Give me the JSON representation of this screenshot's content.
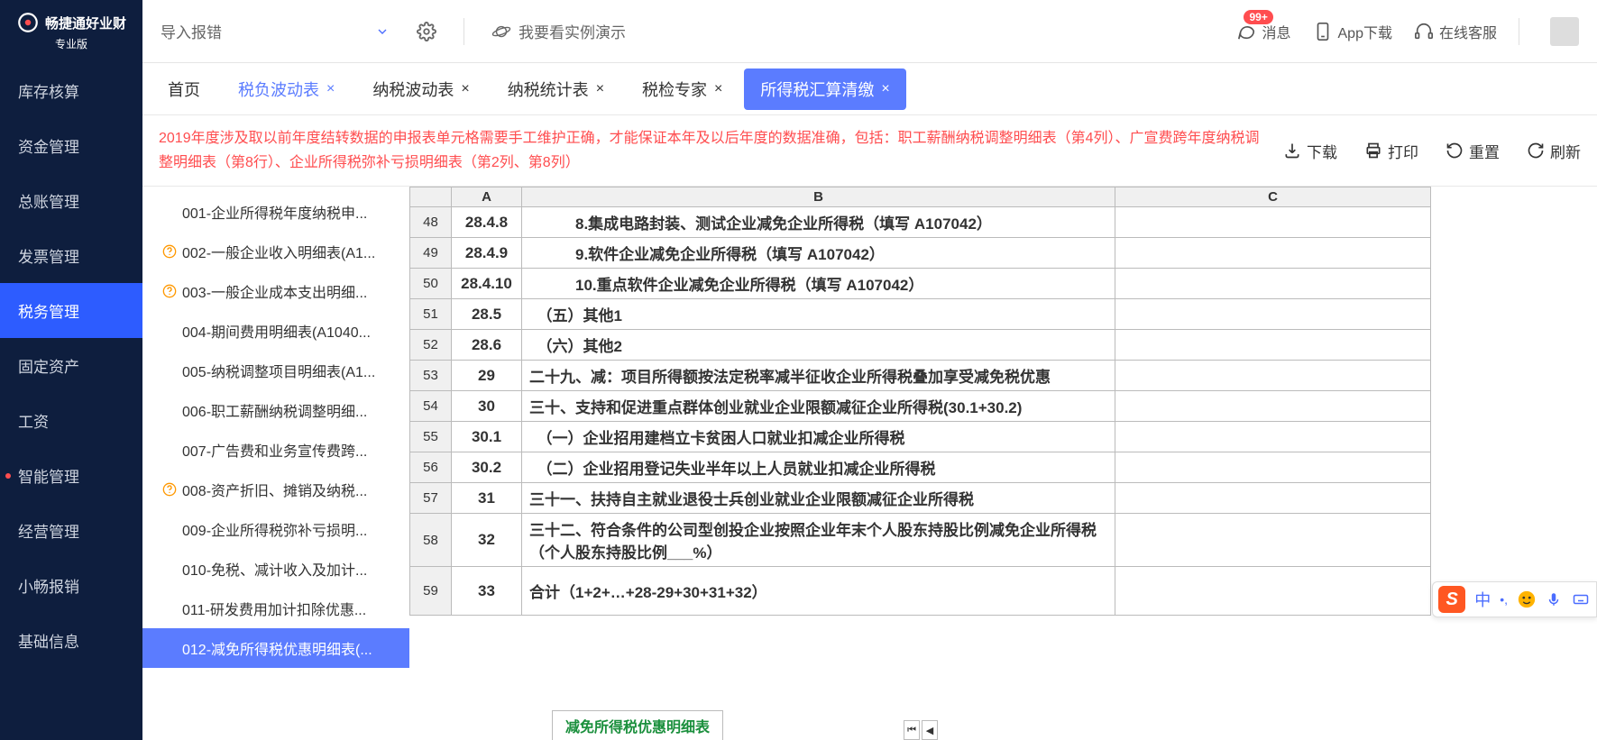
{
  "logo": {
    "text": "畅捷通好业财",
    "sub": "专业版"
  },
  "header": {
    "import_error": "导入报错",
    "demo": "我要看实例演示",
    "actions": {
      "msg": "消息",
      "badge": "99+",
      "app": "App下载",
      "cs": "在线客服"
    }
  },
  "sidebar": {
    "items": [
      "库存核算",
      "资金管理",
      "总账管理",
      "发票管理",
      "税务管理",
      "固定资产",
      "工资",
      "智能管理",
      "经营管理",
      "小畅报销",
      "基础信息"
    ],
    "active_index": 4,
    "dot_index": 7
  },
  "tabs": {
    "items": [
      {
        "label": "首页",
        "closable": false
      },
      {
        "label": "税负波动表",
        "closable": true,
        "link": true
      },
      {
        "label": "纳税波动表",
        "closable": true
      },
      {
        "label": "纳税统计表",
        "closable": true
      },
      {
        "label": "税检专家",
        "closable": true
      },
      {
        "label": "所得税汇算清缴",
        "closable": true,
        "active": true
      }
    ]
  },
  "warning": "2019年度涉及取以前年度结转数据的申报表单元格需要手工维护正确，才能保证本年及以后年度的数据准确，包括：职工薪酬纳税调整明细表（第4列）、广宣费跨年度纳税调整明细表（第8行）、企业所得税弥补亏损明细表（第2列、第8列）",
  "toolbar": {
    "download": "下载",
    "print": "打印",
    "reset": "重置",
    "refresh": "刷新"
  },
  "tree": {
    "items": [
      {
        "label": "001-企业所得税年度纳税申...",
        "q": false
      },
      {
        "label": "002-一般企业收入明细表(A1...",
        "q": true
      },
      {
        "label": "003-一般企业成本支出明细...",
        "q": true
      },
      {
        "label": "004-期间费用明细表(A1040...",
        "q": false
      },
      {
        "label": "005-纳税调整项目明细表(A1...",
        "q": false
      },
      {
        "label": "006-职工薪酬纳税调整明细...",
        "q": false
      },
      {
        "label": "007-广告费和业务宣传费跨...",
        "q": false
      },
      {
        "label": "008-资产折旧、摊销及纳税...",
        "q": true
      },
      {
        "label": "009-企业所得税弥补亏损明...",
        "q": false
      },
      {
        "label": "010-免税、减计收入及加计...",
        "q": false
      },
      {
        "label": "011-研发费用加计扣除优惠...",
        "q": false
      },
      {
        "label": "012-减免所得税优惠明细表(...",
        "q": false,
        "active": true
      }
    ]
  },
  "sheet": {
    "col_heads": [
      "A",
      "B",
      "C"
    ],
    "rows": [
      {
        "n": "48",
        "a": "28.4.8",
        "b": "　　　8.集成电路封装、测试企业减免企业所得税（填写 A107042）"
      },
      {
        "n": "49",
        "a": "28.4.9",
        "b": "　　　9.软件企业减免企业所得税（填写 A107042）"
      },
      {
        "n": "50",
        "a": "28.4.10",
        "b": "　　　10.重点软件企业减免企业所得税（填写 A107042）"
      },
      {
        "n": "51",
        "a": "28.5",
        "b": "　（五）其他1"
      },
      {
        "n": "52",
        "a": "28.6",
        "b": "　（六）其他2"
      },
      {
        "n": "53",
        "a": "29",
        "b": "二十九、减：项目所得额按法定税率减半征收企业所得税叠加享受减免税优惠"
      },
      {
        "n": "54",
        "a": "30",
        "b": "三十、支持和促进重点群体创业就业企业限额减征企业所得税(30.1+30.2)"
      },
      {
        "n": "55",
        "a": "30.1",
        "b": "　（一）企业招用建档立卡贫困人口就业扣减企业所得税"
      },
      {
        "n": "56",
        "a": "30.2",
        "b": "　（二）企业招用登记失业半年以上人员就业扣减企业所得税"
      },
      {
        "n": "57",
        "a": "31",
        "b": "三十一、扶持自主就业退役士兵创业就业企业限额减征企业所得税"
      },
      {
        "n": "58",
        "a": "32",
        "b": "三十二、符合条件的公司型创投企业按照企业年末个人股东持股比例减免企业所得税（个人股东持股比例___%）",
        "tall": true
      },
      {
        "n": "59",
        "a": "33",
        "b": "合计（1+2+…+28-29+30+31+32）",
        "taller": true
      }
    ],
    "bottom_tab": "减免所得税优惠明细表"
  },
  "ime": {
    "zh": "中"
  }
}
